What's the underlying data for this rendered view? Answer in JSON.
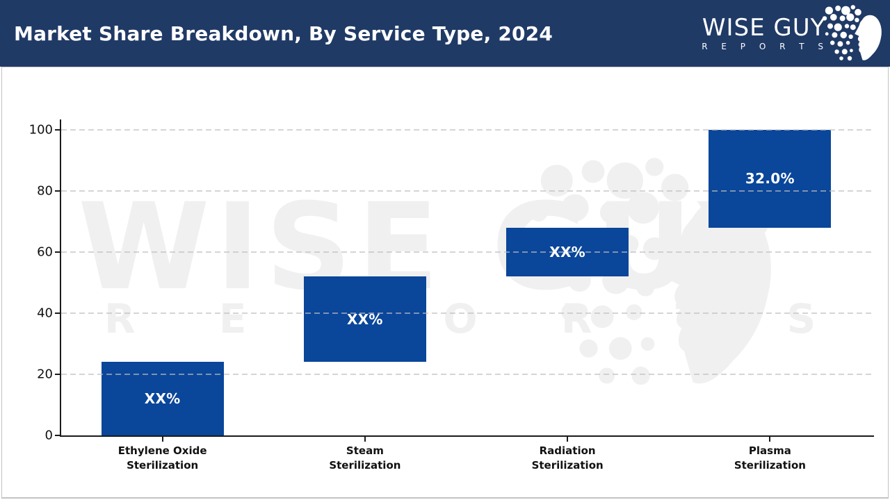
{
  "header": {
    "title": "Market Share Breakdown, By Service Type, 2024",
    "bg_color": "#203a66",
    "logo": {
      "line1": "WISE GUY",
      "line2": "R E P O R T S"
    }
  },
  "watermark": {
    "line1": "WISE GUY",
    "line2": "R E P O R T S"
  },
  "chart_data": {
    "type": "bar",
    "variant": "floating-segment-waterfall",
    "title": "Market Share Breakdown, By Service Type, 2024",
    "categories": [
      [
        "Ethylene Oxide",
        "Sterilization"
      ],
      [
        "Steam",
        "Sterilization"
      ],
      [
        "Radiation",
        "Sterilization"
      ],
      [
        "Plasma",
        "Sterilization"
      ]
    ],
    "segments": [
      {
        "category": "Ethylene Oxide Sterilization",
        "start": 0,
        "end": 24,
        "label": "XX%"
      },
      {
        "category": "Steam Sterilization",
        "start": 24,
        "end": 52,
        "label": "XX%"
      },
      {
        "category": "Radiation Sterilization",
        "start": 52,
        "end": 68,
        "label": "XX%"
      },
      {
        "category": "Plasma Sterilization",
        "start": 68,
        "end": 100,
        "label": "32.0%"
      }
    ],
    "ylim": [
      0,
      100
    ],
    "yticks": [
      0,
      20,
      40,
      60,
      80,
      100
    ],
    "xlabel": "",
    "ylabel": "",
    "legend": "none",
    "grid": {
      "horizontal": true,
      "style": "dashed",
      "color": "#d9d9d9"
    },
    "bar_color": "#0a469a",
    "bar_label_color": "#ffffff",
    "axis_color": "#1a1a1a"
  }
}
